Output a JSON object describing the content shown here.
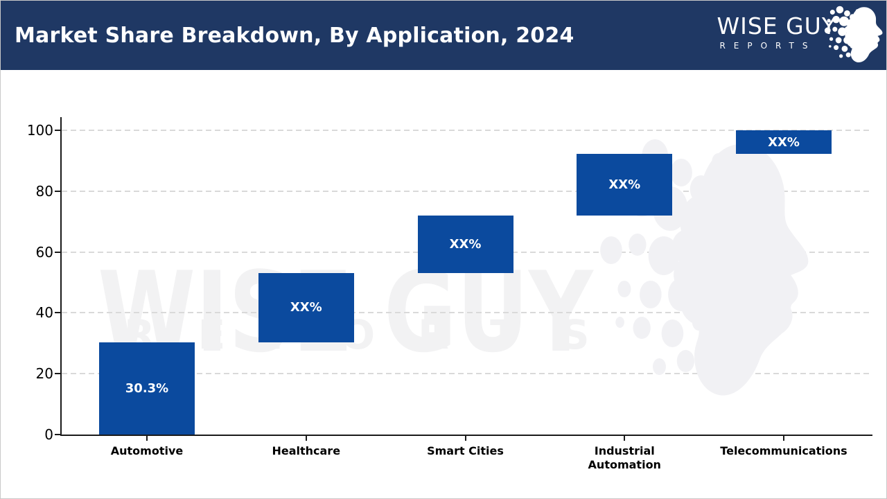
{
  "header": {
    "title": "Market Share Breakdown, By Application, 2024",
    "logo": {
      "brand": "WISE GUY",
      "sub": "REPORTS",
      "face_icon": "dotted-face-profile"
    }
  },
  "watermark": {
    "brand": "WISE GUY",
    "sub": "REPORTS",
    "face_icon": "dotted-face-profile"
  },
  "chart_data": {
    "type": "bar",
    "subtype": "waterfall",
    "title": "Market Share Breakdown, By Application, 2024",
    "categories": [
      "Automotive",
      "Healthcare",
      "Smart Cities",
      "Industrial\nAutomation",
      "Telecommunications"
    ],
    "segments": [
      {
        "category": "Automotive",
        "start": 0,
        "end": 30.3,
        "value": 30.3,
        "label": "30.3%"
      },
      {
        "category": "Healthcare",
        "start": 30.3,
        "end": 53.1,
        "value": 22.8,
        "label": "XX%"
      },
      {
        "category": "Smart Cities",
        "start": 53.1,
        "end": 72.0,
        "value": 18.9,
        "label": "XX%"
      },
      {
        "category": "Industrial Automation",
        "start": 72.0,
        "end": 92.2,
        "value": 20.2,
        "label": "XX%"
      },
      {
        "category": "Telecommunications",
        "start": 92.2,
        "end": 100.0,
        "value": 7.8,
        "label": "XX%"
      }
    ],
    "yticks": [
      0,
      20,
      40,
      60,
      80,
      100
    ],
    "ylim": [
      0,
      104
    ],
    "xlabel": "",
    "ylabel": "",
    "grid": "horizontal-dashed",
    "legend": "none",
    "colors": {
      "bar": "#0b4a9e",
      "value_label": "#ffffff",
      "axis": "#1a1a1a",
      "gridline": "#d9d9d9",
      "header_background": "#1f3864",
      "header_text": "#ffffff",
      "watermark": "#f2f2f3"
    }
  }
}
